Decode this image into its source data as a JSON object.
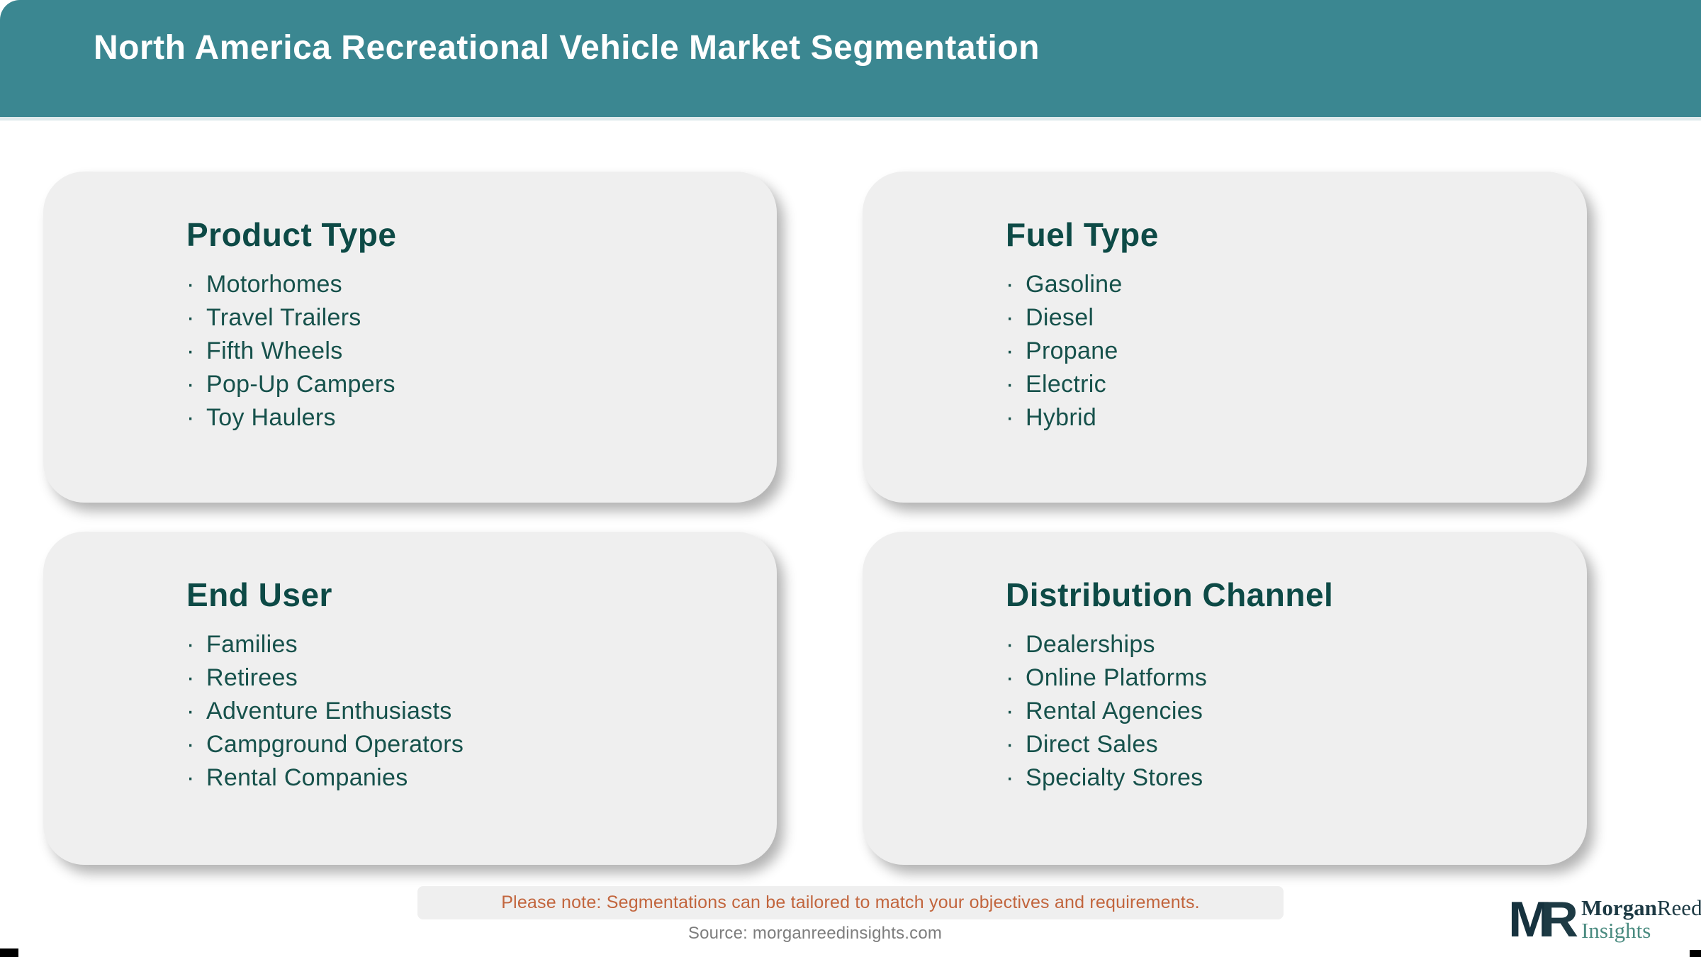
{
  "header": {
    "title": "North America Recreational Vehicle Market Segmentation"
  },
  "bullet_char": "·",
  "cards": [
    {
      "title": "Product Type",
      "items": [
        "Motorhomes",
        "Travel Trailers",
        "Fifth Wheels",
        "Pop-Up Campers",
        "Toy Haulers"
      ]
    },
    {
      "title": "Fuel Type",
      "items": [
        "Gasoline",
        "Diesel",
        "Propane",
        "Electric",
        "Hybrid"
      ]
    },
    {
      "title": "End User",
      "items": [
        "Families",
        "Retirees",
        "Adventure Enthusiasts",
        "Campground Operators",
        "Rental Companies"
      ]
    },
    {
      "title": "Distribution Channel",
      "items": [
        "Dealerships",
        "Online Platforms",
        "Rental Agencies",
        "Direct Sales",
        "Specialty Stores"
      ]
    }
  ],
  "footer": {
    "note": "Please note: Segmentations can be tailored to match your objectives and requirements.",
    "source": "Source: morganreedinsights.com"
  },
  "logo": {
    "monogram_m": "M",
    "monogram_r": "R",
    "name_bold": "Morgan",
    "name_regular": "Reed",
    "subtitle": "Insights"
  },
  "colors": {
    "header_background": "#3b8791",
    "card_background": "#efefef",
    "heading_text": "#0d4a46",
    "list_text": "#16514b",
    "note_text": "#c2653d",
    "source_text": "#7d7d7d",
    "logo_dark": "#1d3a44",
    "logo_teal": "#4a8b80"
  }
}
